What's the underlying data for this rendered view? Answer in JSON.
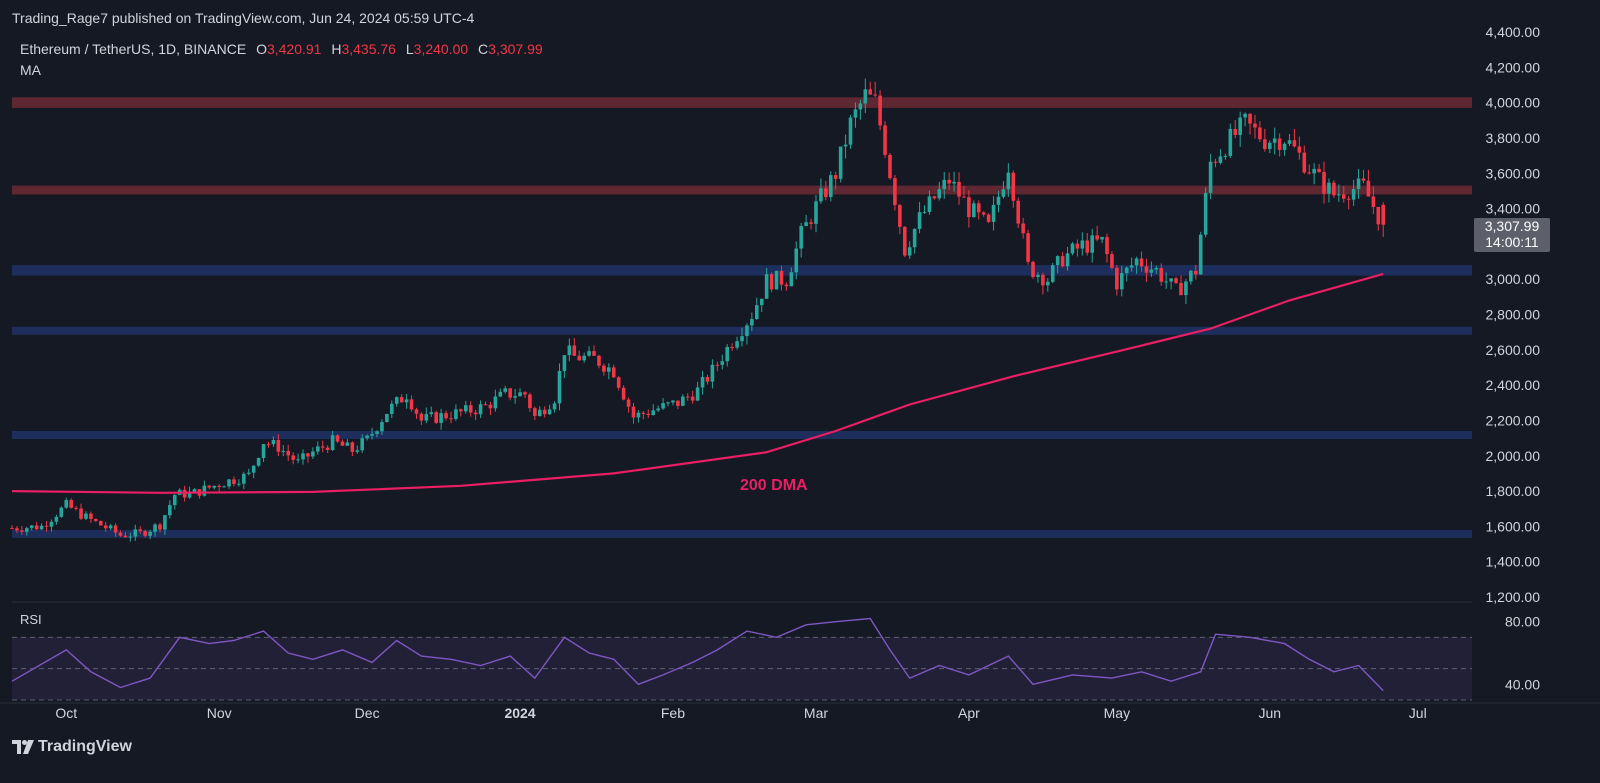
{
  "publish_line": "Trading_Rage7 published on TradingView.com, Jun 24, 2024 05:59 UTC-4",
  "legend": {
    "symbol": "Ethereum / TetherUS, 1D, BINANCE",
    "o_label": "O",
    "o_value": "3,420.91",
    "h_label": "H",
    "h_value": "3,435.76",
    "l_label": "L",
    "l_value": "3,240.00",
    "c_label": "C",
    "c_value": "3,307.99",
    "ma_label": "MA"
  },
  "price_tag": {
    "price": "3,307.99",
    "countdown": "14:00:11"
  },
  "rsi_label": "RSI",
  "footer": {
    "brand": "TradingView"
  },
  "colors": {
    "up": "#26a69a",
    "down": "#f23645",
    "ma": "#e91e63",
    "resistance_zone": "#6b2a35",
    "support_zone": "#1f3266",
    "rsi_line": "#7e57c2"
  },
  "chart_data": [
    {
      "type": "candlestick",
      "symbol": "Ethereum / TetherUS",
      "timeframe": "1D",
      "exchange": "BINANCE",
      "ohlc": {
        "open": 3420.91,
        "high": 3435.76,
        "low": 3240.0,
        "close": 3307.99
      },
      "y_ticks": [
        "4,400.00",
        "4,200.00",
        "4,000.00",
        "3,800.00",
        "3,600.00",
        "3,400.00",
        "3,000.00",
        "2,800.00",
        "2,600.00",
        "2,400.00",
        "2,200.00",
        "2,000.00",
        "1,800.00",
        "1,600.00",
        "1,400.00",
        "1,200.00"
      ],
      "x_ticks": [
        {
          "label": "Oct",
          "date": "2023-10-01"
        },
        {
          "label": "Nov",
          "date": "2023-11-01"
        },
        {
          "label": "Dec",
          "date": "2023-12-01"
        },
        {
          "label": "2024",
          "date": "2024-01-01",
          "bold": true
        },
        {
          "label": "Feb",
          "date": "2024-02-01"
        },
        {
          "label": "Mar",
          "date": "2024-03-01"
        },
        {
          "label": "Apr",
          "date": "2024-04-01"
        },
        {
          "label": "May",
          "date": "2024-05-01"
        },
        {
          "label": "Jun",
          "date": "2024-06-01"
        },
        {
          "label": "Jul",
          "date": "2024-07-01"
        }
      ],
      "ylim": [
        1200,
        4400
      ],
      "date_range": [
        "2023-09-20",
        "2024-06-24"
      ],
      "horizontal_zones": [
        {
          "kind": "resistance",
          "low": 3970,
          "high": 4030
        },
        {
          "kind": "resistance",
          "low": 3480,
          "high": 3530
        },
        {
          "kind": "support",
          "low": 3020,
          "high": 3080
        },
        {
          "kind": "support",
          "low": 2690,
          "high": 2730
        },
        {
          "kind": "support",
          "low": 2100,
          "high": 2140
        },
        {
          "kind": "support",
          "low": 1540,
          "high": 1580
        }
      ],
      "price_path": [
        [
          "2023-09-20",
          1590
        ],
        [
          "2023-09-26",
          1600
        ],
        [
          "2023-10-01",
          1720
        ],
        [
          "2023-10-05",
          1650
        ],
        [
          "2023-10-10",
          1580
        ],
        [
          "2023-10-12",
          1550
        ],
        [
          "2023-10-16",
          1560
        ],
        [
          "2023-10-20",
          1610
        ],
        [
          "2023-10-23",
          1780
        ],
        [
          "2023-10-27",
          1790
        ],
        [
          "2023-11-02",
          1850
        ],
        [
          "2023-11-07",
          1890
        ],
        [
          "2023-11-10",
          2080
        ],
        [
          "2023-11-13",
          2050
        ],
        [
          "2023-11-17",
          1960
        ],
        [
          "2023-11-20",
          2020
        ],
        [
          "2023-11-24",
          2080
        ],
        [
          "2023-11-28",
          2030
        ],
        [
          "2023-12-01",
          2090
        ],
        [
          "2023-12-05",
          2250
        ],
        [
          "2023-12-09",
          2350
        ],
        [
          "2023-12-12",
          2200
        ],
        [
          "2023-12-17",
          2230
        ],
        [
          "2023-12-21",
          2250
        ],
        [
          "2023-12-25",
          2280
        ],
        [
          "2023-12-29",
          2350
        ],
        [
          "2024-01-02",
          2350
        ],
        [
          "2024-01-04",
          2220
        ],
        [
          "2024-01-08",
          2330
        ],
        [
          "2024-01-10",
          2600
        ],
        [
          "2024-01-12",
          2560
        ],
        [
          "2024-01-16",
          2550
        ],
        [
          "2024-01-20",
          2480
        ],
        [
          "2024-01-24",
          2220
        ],
        [
          "2024-01-28",
          2260
        ],
        [
          "2024-02-02",
          2300
        ],
        [
          "2024-02-06",
          2370
        ],
        [
          "2024-02-09",
          2480
        ],
        [
          "2024-02-13",
          2650
        ],
        [
          "2024-02-17",
          2800
        ],
        [
          "2024-02-20",
          2990
        ],
        [
          "2024-02-24",
          3000
        ],
        [
          "2024-02-27",
          3250
        ],
        [
          "2024-03-01",
          3410
        ],
        [
          "2024-03-05",
          3600
        ],
        [
          "2024-03-08",
          3880
        ],
        [
          "2024-03-11",
          4040
        ],
        [
          "2024-03-13",
          4000
        ],
        [
          "2024-03-15",
          3750
        ],
        [
          "2024-03-19",
          3170
        ],
        [
          "2024-03-22",
          3340
        ],
        [
          "2024-03-25",
          3460
        ],
        [
          "2024-03-28",
          3560
        ],
        [
          "2024-04-01",
          3400
        ],
        [
          "2024-04-05",
          3290
        ],
        [
          "2024-04-09",
          3650
        ],
        [
          "2024-04-13",
          3070
        ],
        [
          "2024-04-17",
          3000
        ],
        [
          "2024-04-20",
          3120
        ],
        [
          "2024-04-24",
          3190
        ],
        [
          "2024-04-28",
          3210
        ],
        [
          "2024-05-01",
          2980
        ],
        [
          "2024-05-05",
          3110
        ],
        [
          "2024-05-09",
          3050
        ],
        [
          "2024-05-13",
          2930
        ],
        [
          "2024-05-17",
          3050
        ],
        [
          "2024-05-20",
          3660
        ],
        [
          "2024-05-23",
          3760
        ],
        [
          "2024-05-27",
          3880
        ],
        [
          "2024-05-31",
          3790
        ],
        [
          "2024-06-04",
          3800
        ],
        [
          "2024-06-07",
          3700
        ],
        [
          "2024-06-11",
          3560
        ],
        [
          "2024-06-14",
          3480
        ],
        [
          "2024-06-17",
          3510
        ],
        [
          "2024-06-20",
          3520
        ],
        [
          "2024-06-24",
          3308
        ]
      ],
      "ma_200": {
        "label": "200 DMA",
        "points": [
          [
            "2023-09-20",
            1800
          ],
          [
            "2023-10-20",
            1790
          ],
          [
            "2023-11-20",
            1795
          ],
          [
            "2023-12-20",
            1830
          ],
          [
            "2024-01-20",
            1900
          ],
          [
            "2024-02-20",
            2020
          ],
          [
            "2024-03-05",
            2140
          ],
          [
            "2024-03-20",
            2290
          ],
          [
            "2024-04-10",
            2450
          ],
          [
            "2024-05-01",
            2590
          ],
          [
            "2024-05-20",
            2720
          ],
          [
            "2024-06-05",
            2880
          ],
          [
            "2024-06-24",
            3030
          ]
        ]
      },
      "rsi": {
        "name": "RSI",
        "y_ticks": [
          "80.00",
          "40.00"
        ],
        "ylim": [
          30,
          90
        ],
        "bands": [
          70,
          50,
          30
        ],
        "points": [
          [
            "2023-09-20",
            42
          ],
          [
            "2023-10-01",
            62
          ],
          [
            "2023-10-06",
            48
          ],
          [
            "2023-10-12",
            38
          ],
          [
            "2023-10-18",
            44
          ],
          [
            "2023-10-24",
            70
          ],
          [
            "2023-10-30",
            66
          ],
          [
            "2023-11-04",
            68
          ],
          [
            "2023-11-10",
            74
          ],
          [
            "2023-11-15",
            60
          ],
          [
            "2023-11-20",
            56
          ],
          [
            "2023-11-26",
            62
          ],
          [
            "2023-12-02",
            54
          ],
          [
            "2023-12-07",
            68
          ],
          [
            "2023-12-12",
            58
          ],
          [
            "2023-12-18",
            56
          ],
          [
            "2023-12-24",
            52
          ],
          [
            "2023-12-30",
            58
          ],
          [
            "2024-01-04",
            44
          ],
          [
            "2024-01-10",
            70
          ],
          [
            "2024-01-15",
            60
          ],
          [
            "2024-01-20",
            56
          ],
          [
            "2024-01-25",
            40
          ],
          [
            "2024-01-30",
            46
          ],
          [
            "2024-02-05",
            54
          ],
          [
            "2024-02-10",
            62
          ],
          [
            "2024-02-16",
            74
          ],
          [
            "2024-02-22",
            70
          ],
          [
            "2024-02-28",
            78
          ],
          [
            "2024-03-05",
            80
          ],
          [
            "2024-03-12",
            82
          ],
          [
            "2024-03-16",
            62
          ],
          [
            "2024-03-20",
            44
          ],
          [
            "2024-03-26",
            52
          ],
          [
            "2024-04-01",
            46
          ],
          [
            "2024-04-09",
            58
          ],
          [
            "2024-04-14",
            40
          ],
          [
            "2024-04-22",
            46
          ],
          [
            "2024-04-30",
            44
          ],
          [
            "2024-05-06",
            48
          ],
          [
            "2024-05-12",
            42
          ],
          [
            "2024-05-18",
            48
          ],
          [
            "2024-05-21",
            72
          ],
          [
            "2024-05-28",
            70
          ],
          [
            "2024-06-04",
            66
          ],
          [
            "2024-06-09",
            56
          ],
          [
            "2024-06-14",
            48
          ],
          [
            "2024-06-19",
            52
          ],
          [
            "2024-06-24",
            36
          ]
        ]
      }
    }
  ]
}
